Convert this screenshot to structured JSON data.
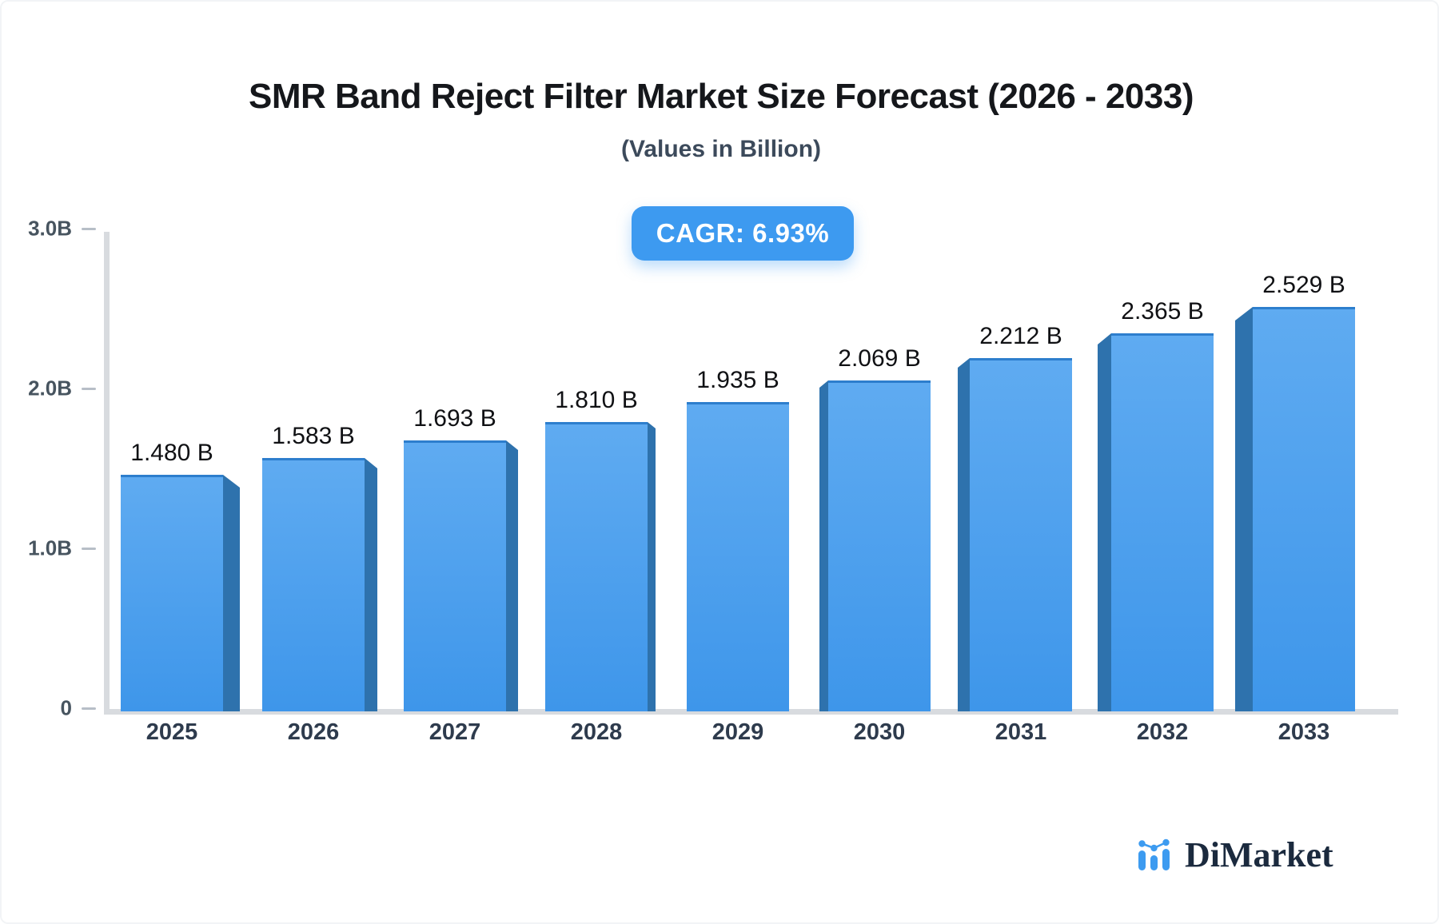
{
  "header": {
    "title": "SMR Band Reject Filter Market Size Forecast (2026 - 2033)",
    "subtitle": "(Values in Billion)"
  },
  "badge": {
    "label": "CAGR: 6.93%",
    "bg": "#3d9af0",
    "text_color": "#ffffff"
  },
  "chart_data": {
    "type": "bar",
    "title": "SMR Band Reject Filter Market Size Forecast (2026 - 2033)",
    "subtitle": "(Values in Billion)",
    "cagr_label": "CAGR: 6.93%",
    "categories": [
      "2025",
      "2026",
      "2027",
      "2028",
      "2029",
      "2030",
      "2031",
      "2032",
      "2033"
    ],
    "values": [
      1.48,
      1.583,
      1.693,
      1.81,
      1.935,
      2.069,
      2.212,
      2.365,
      2.529
    ],
    "value_labels": [
      "1.480 B",
      "1.583 B",
      "1.693 B",
      "1.810 B",
      "1.935 B",
      "2.069 B",
      "2.212 B",
      "2.365 B",
      "2.529 B"
    ],
    "ylabel": "",
    "xlabel": "",
    "ylim": [
      0,
      3
    ],
    "yticks": [
      {
        "label": "3.0B",
        "value": 3.0
      },
      {
        "label": "2.0B",
        "value": 2.0
      },
      {
        "label": "1.0B",
        "value": 1.0
      },
      {
        "label": "0",
        "value": 0.0
      }
    ],
    "grid": false,
    "legend": false,
    "style_3d": true,
    "bar_color_top": "#5fabf1",
    "bar_color_bottom": "#3e96ea",
    "bar_top_border": "#2d7ecd",
    "bar_side_color": "#2e72ad"
  },
  "axis": {
    "line_color": "#d8dbdf",
    "tick_color": "#b7bec7",
    "tick_label_color": "#47545f"
  },
  "logo": {
    "text": "DiMarket",
    "icon": "bar-chart-trend-icon",
    "icon_color": "#3d9bf0",
    "text_color": "#1b2a3e"
  }
}
